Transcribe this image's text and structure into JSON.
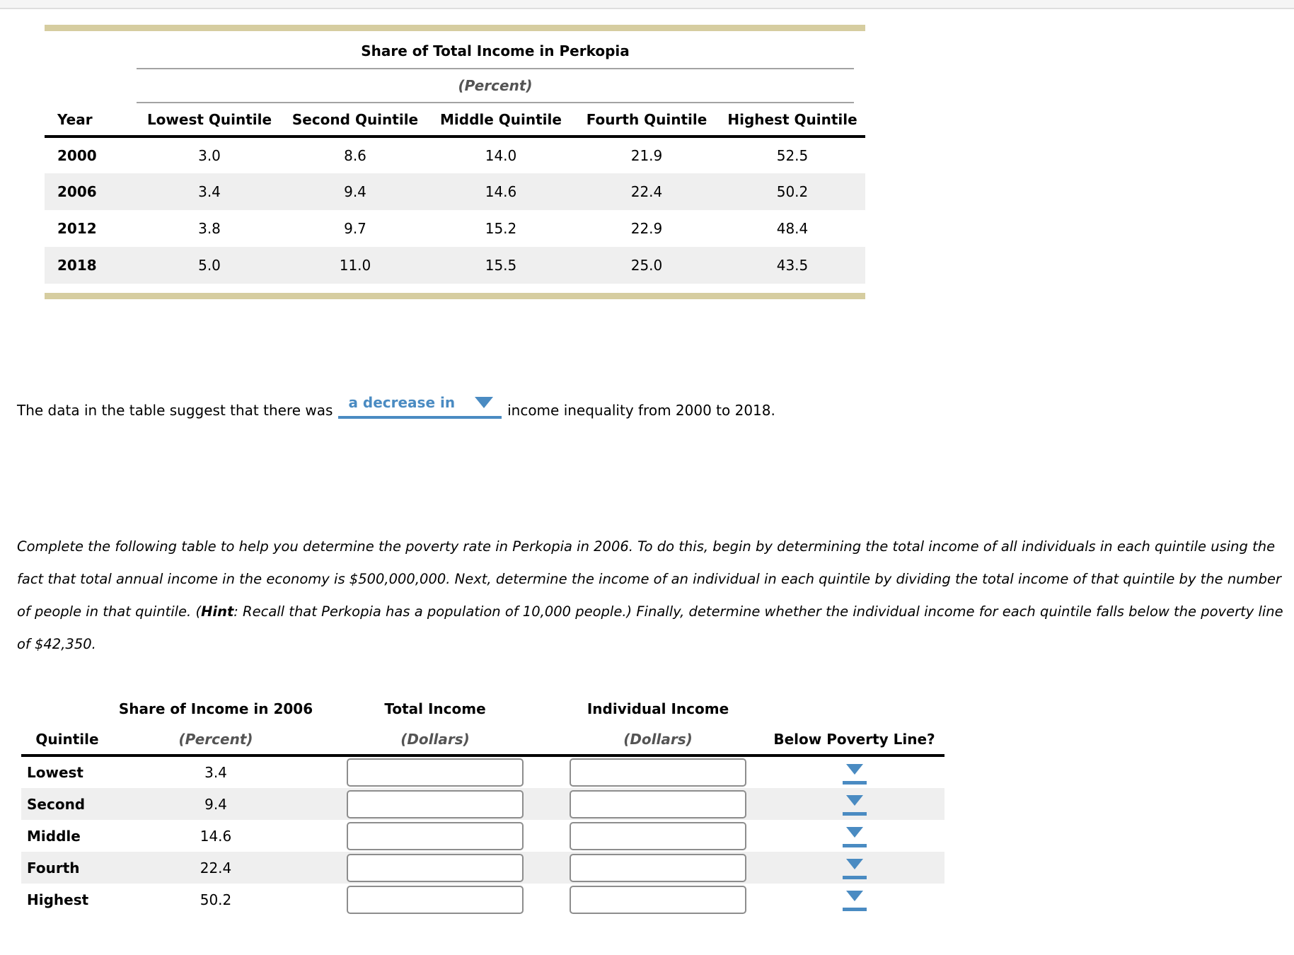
{
  "colors": {
    "accent_bar": "#d6cda0",
    "link_blue": "#4a8bc2",
    "row_stripe": "#efefef",
    "unit_text": "#545454"
  },
  "icons": {
    "dropdown_caret": "caret-down-triangle"
  },
  "income_table": {
    "title": "Share of Total Income in Perkopia",
    "subtitle": "(Percent)",
    "columns": [
      "Year",
      "Lowest Quintile",
      "Second Quintile",
      "Middle Quintile",
      "Fourth Quintile",
      "Highest Quintile"
    ],
    "rows": [
      {
        "year": "2000",
        "values": [
          "3.0",
          "8.6",
          "14.0",
          "21.9",
          "52.5"
        ]
      },
      {
        "year": "2006",
        "values": [
          "3.4",
          "9.4",
          "14.6",
          "22.4",
          "50.2"
        ]
      },
      {
        "year": "2012",
        "values": [
          "3.8",
          "9.7",
          "15.2",
          "22.9",
          "48.4"
        ]
      },
      {
        "year": "2018",
        "values": [
          "5.0",
          "11.0",
          "15.5",
          "25.0",
          "43.5"
        ]
      }
    ]
  },
  "inequality_sentence": {
    "before": "The data in the table suggest that there was",
    "dropdown_value": "a decrease in",
    "after": "income inequality from 2000 to 2018."
  },
  "instructions": {
    "part1": "Complete the following table to help you determine the poverty rate in Perkopia in 2006. To do this, begin by determining the total income of all individuals in each quintile using the fact that total annual income in the economy is $500,000,000. Next, determine the income of an individual in each quintile by dividing the total income of that quintile by the number of people in that quintile. (",
    "hint_label": "Hint",
    "part2": ": Recall that Perkopia has a population of 10,000 people.) Finally, determine whether the individual income for each quintile falls below the poverty line of $42,350."
  },
  "poverty_table": {
    "group_headers": {
      "share": "Share of Income in 2006",
      "total": "Total Income",
      "individual": "Individual Income"
    },
    "header": {
      "quintile": "Quintile",
      "share_unit": "(Percent)",
      "total_unit": "(Dollars)",
      "individual_unit": "(Dollars)",
      "below_label": "Below Poverty Line?"
    },
    "rows": [
      {
        "quintile": "Lowest",
        "share": "3.4",
        "total_value": "",
        "individual_value": ""
      },
      {
        "quintile": "Second",
        "share": "9.4",
        "total_value": "",
        "individual_value": ""
      },
      {
        "quintile": "Middle",
        "share": "14.6",
        "total_value": "",
        "individual_value": ""
      },
      {
        "quintile": "Fourth",
        "share": "22.4",
        "total_value": "",
        "individual_value": ""
      },
      {
        "quintile": "Highest",
        "share": "50.2",
        "total_value": "",
        "individual_value": ""
      }
    ]
  }
}
